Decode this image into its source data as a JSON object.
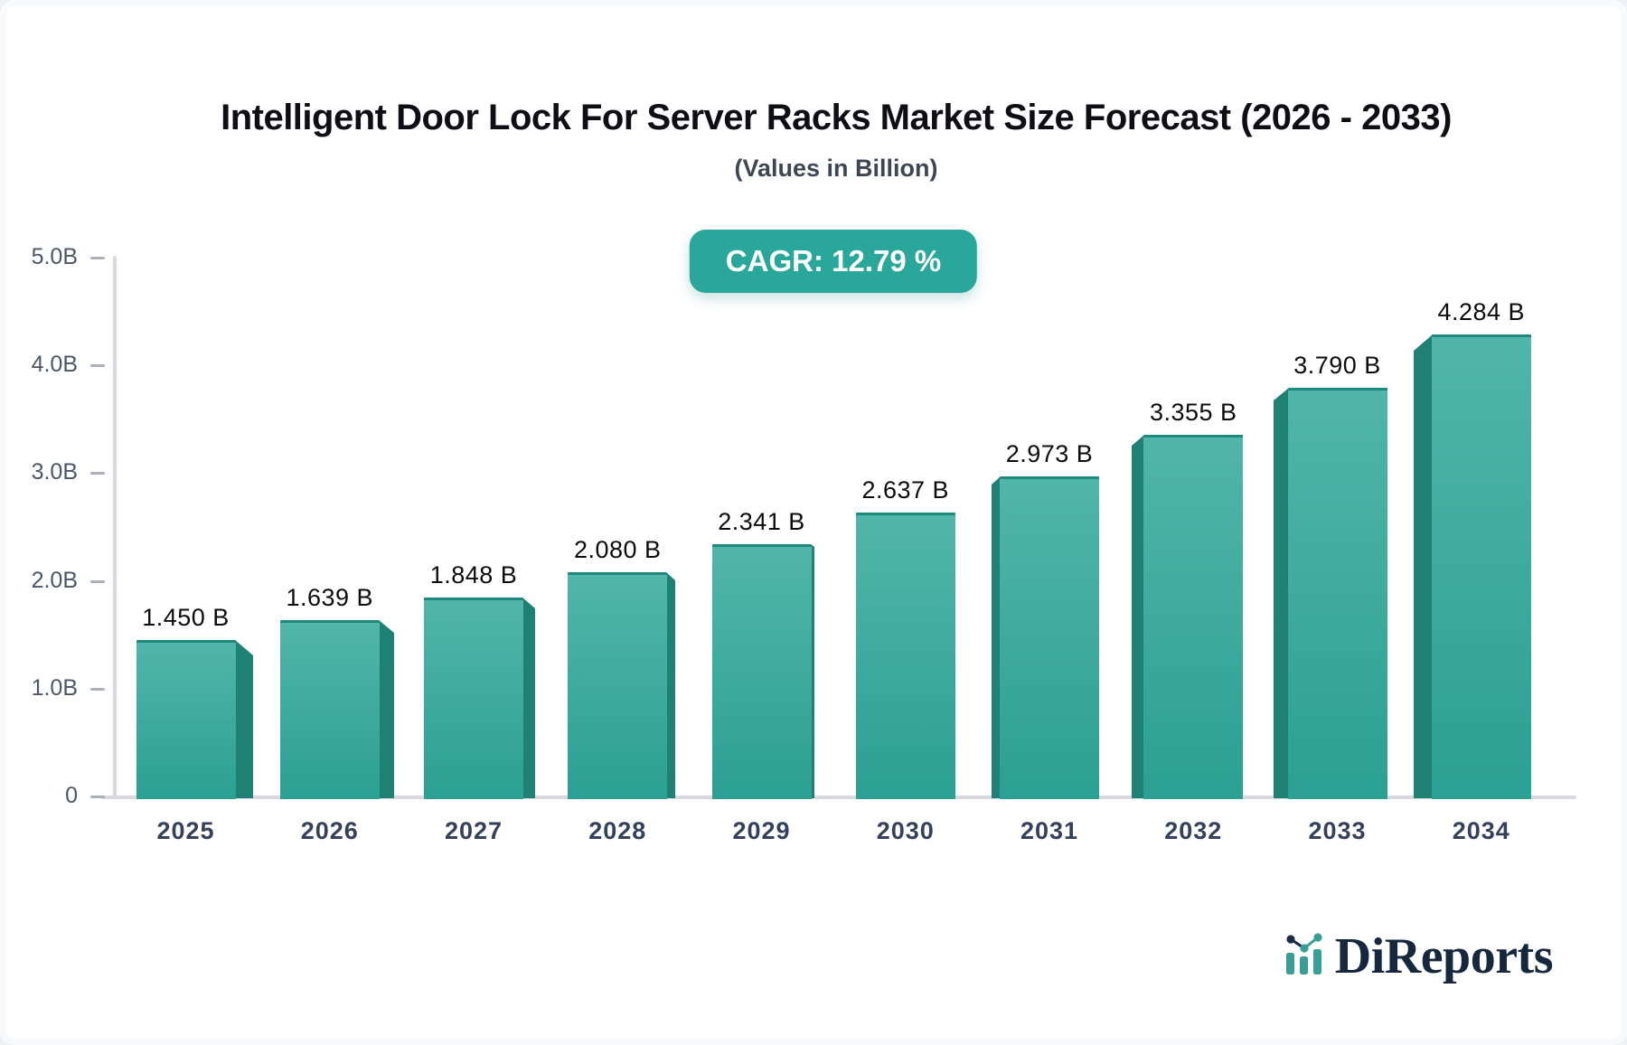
{
  "header": {
    "title": "Intelligent Door Lock For Server Racks Market Size Forecast (2026 - 2033)",
    "subtitle": "(Values in Billion)"
  },
  "badge": {
    "label": "CAGR: 12.79 %",
    "bg_color": "#2aa79b",
    "text_color": "#ffffff"
  },
  "chart_data": {
    "type": "bar",
    "title": "Intelligent Door Lock For Server Racks Market Size Forecast (2026 - 2033)",
    "subtitle": "(Values in Billion)",
    "unit": "Billion",
    "categories": [
      "2025",
      "2026",
      "2027",
      "2028",
      "2029",
      "2030",
      "2031",
      "2032",
      "2033",
      "2034"
    ],
    "values": [
      1.45,
      1.639,
      1.848,
      2.08,
      2.341,
      2.637,
      2.973,
      3.355,
      3.79,
      4.284
    ],
    "value_labels": [
      "1.450 B",
      "1.639 B",
      "1.848 B",
      "2.080 B",
      "2.341 B",
      "2.637 B",
      "2.973 B",
      "3.355 B",
      "3.790 B",
      "4.284 B"
    ],
    "xlabel": "",
    "ylabel": "",
    "ylim": [
      0,
      5
    ],
    "yticks": [
      {
        "value": 0,
        "label": "0"
      },
      {
        "value": 1,
        "label": "1.0B"
      },
      {
        "value": 2,
        "label": "2.0B"
      },
      {
        "value": 3,
        "label": "3.0B"
      },
      {
        "value": 4,
        "label": "4.0B"
      },
      {
        "value": 5,
        "label": "5.0B"
      }
    ],
    "grid": false,
    "legend": false,
    "bar_style": "3d",
    "colors": {
      "bar_top": "#52b5a9",
      "bar_bottom": "#2ba093",
      "bar_side": "#1f8074",
      "bar_edge": "#1d8a7d",
      "axis_line": "#d7d9df",
      "tick_dash": "#aab0ba",
      "y_label": "#4b5767",
      "x_label": "#33415a",
      "value_label": "#0b0c0e"
    }
  },
  "logo": {
    "text": "DiReports",
    "text_color": "#16283e",
    "mark_teal": "#3a9e96",
    "mark_navy": "#1b2c44"
  }
}
